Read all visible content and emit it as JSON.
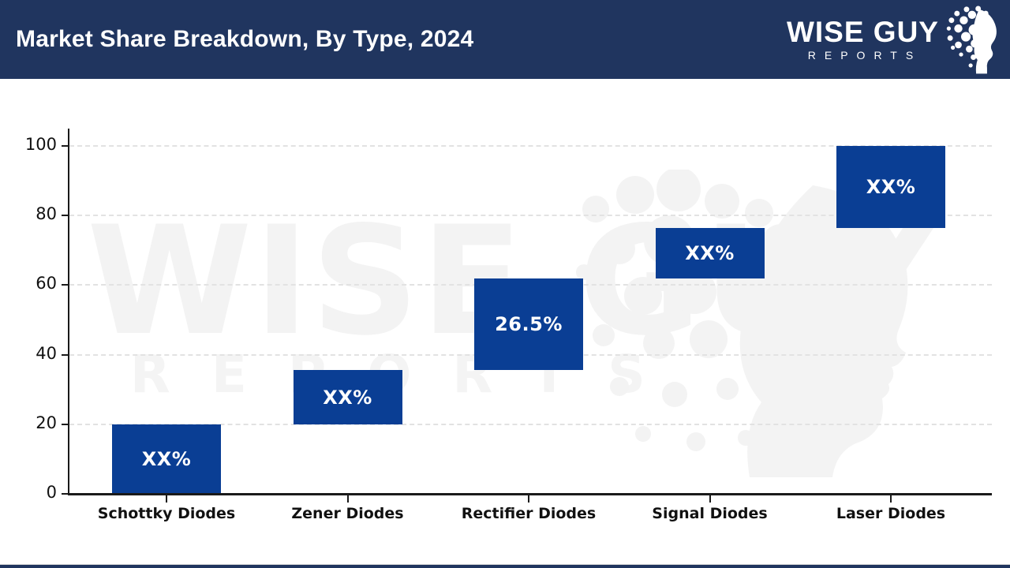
{
  "header": {
    "title": "Market Share Breakdown, By Type, 2024",
    "logo": {
      "line1": "WISE GUY",
      "line2": "REPORTS",
      "icon": "dotted-face-profile-icon"
    },
    "header_color": "#20355F"
  },
  "watermark": {
    "line1": "WISE GUY",
    "line2": "REPORTS",
    "icon": "dotted-face-profile-watermark-icon"
  },
  "chart_data": {
    "type": "bar",
    "subtype": "waterfall",
    "title": "Market Share Breakdown, By Type, 2024",
    "xlabel": "",
    "ylabel": "",
    "ylim": [
      0,
      105
    ],
    "y_ticks": [
      0,
      20,
      40,
      60,
      80,
      100
    ],
    "grid": "horizontal-dashed",
    "legend": "none",
    "bar_color": "#0A3E94",
    "label_color": "#ffffff",
    "categories": [
      "Schottky Diodes",
      "Zener Diodes",
      "Rectifier Diodes",
      "Signal Diodes",
      "Laser Diodes"
    ],
    "segments": [
      {
        "category": "Schottky Diodes",
        "start": 0,
        "end": 20,
        "size_label": "XX%"
      },
      {
        "category": "Zener Diodes",
        "start": 20,
        "end": 35.5,
        "size_label": "XX%"
      },
      {
        "category": "Rectifier Diodes",
        "start": 35.5,
        "end": 62,
        "size_label": "26.5%"
      },
      {
        "category": "Signal Diodes",
        "start": 62,
        "end": 76.5,
        "size_label": "XX%"
      },
      {
        "category": "Laser Diodes",
        "start": 76.5,
        "end": 100,
        "size_label": "XX%"
      }
    ]
  },
  "footer": {
    "bar_color": "#20355F"
  }
}
